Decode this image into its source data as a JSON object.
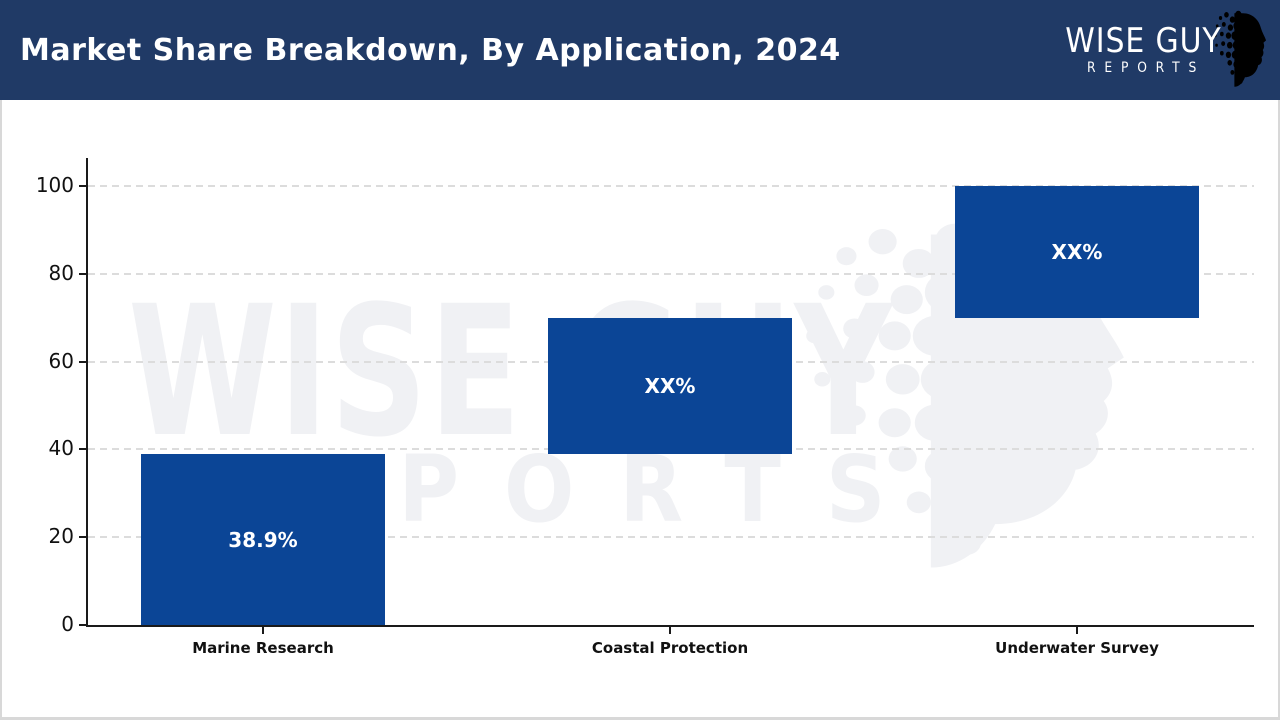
{
  "header": {
    "title": "Market Share Breakdown, By Application, 2024",
    "logo": {
      "wordmark": "WISE GUY",
      "subtitle": "REPORTS"
    }
  },
  "watermark": {
    "wordmark": "WISE GUY",
    "subtitle": "REPORTS"
  },
  "chart_data": {
    "type": "bar",
    "subtype": "waterfall",
    "title": "Market Share Breakdown, By Application, 2024",
    "categories": [
      "Marine Research",
      "Coastal Protection",
      "Underwater Survey"
    ],
    "segments": [
      {
        "category": "Marine Research",
        "start": 0,
        "end": 38.9,
        "label": "38.9%"
      },
      {
        "category": "Coastal Protection",
        "start": 38.9,
        "end": 70,
        "label": "XX%"
      },
      {
        "category": "Underwater Survey",
        "start": 70,
        "end": 100,
        "label": "XX%"
      }
    ],
    "y_ticks": [
      0,
      20,
      40,
      60,
      80,
      100
    ],
    "ylim": [
      0,
      106
    ],
    "xlabel": "",
    "ylabel": "",
    "grid": "horizontal-dashed",
    "legend": "none"
  },
  "colors": {
    "header_bg": "#203a66",
    "header_text": "#ffffff",
    "bar": "#0b4596",
    "bar_label": "#ffffff",
    "axis": "#1a1a1a",
    "text": "#111111",
    "grid": "#dcdcdc",
    "watermark": "#f0f1f4",
    "page_border": "#d8d8d8"
  }
}
